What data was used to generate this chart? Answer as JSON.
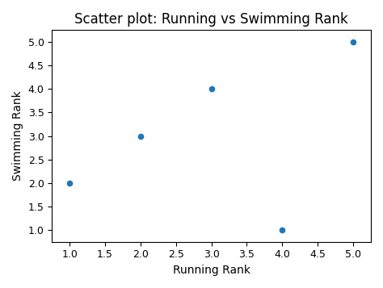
{
  "title": "Scatter plot: Running vs Swimming Rank",
  "xlabel": "Running Rank",
  "ylabel": "Swimming Rank",
  "x": [
    1,
    2,
    3,
    4,
    5
  ],
  "y": [
    2,
    3,
    4,
    1,
    5
  ],
  "dot_color": "#1f77b4",
  "dot_size": 20,
  "xlim": [
    0.75,
    5.25
  ],
  "ylim": [
    0.75,
    5.25
  ],
  "xticks": [
    1.0,
    1.5,
    2.0,
    2.5,
    3.0,
    3.5,
    4.0,
    4.5,
    5.0
  ],
  "yticks": [
    1.0,
    1.5,
    2.0,
    2.5,
    3.0,
    3.5,
    4.0,
    4.5,
    5.0
  ],
  "title_fontsize": 12,
  "label_fontsize": 10,
  "tick_fontsize": 9
}
